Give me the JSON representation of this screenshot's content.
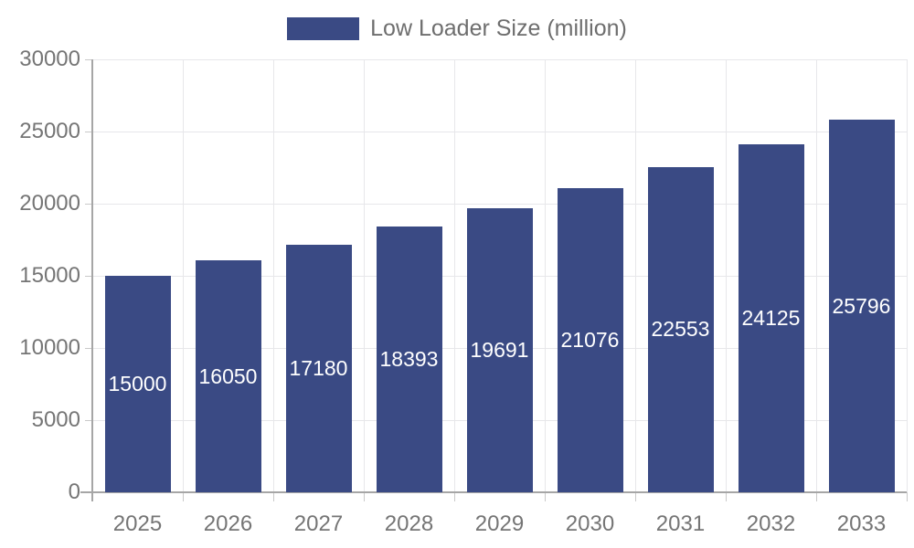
{
  "chart_data": {
    "type": "bar",
    "title": "",
    "legend_position": "top-center",
    "categories": [
      "2025",
      "2026",
      "2027",
      "2028",
      "2029",
      "2030",
      "2031",
      "2032",
      "2033"
    ],
    "series": [
      {
        "name": "Low Loader Size (million)",
        "values": [
          15000,
          16050,
          17180,
          18393,
          19691,
          21076,
          22553,
          24125,
          25796
        ]
      }
    ],
    "xlabel": "",
    "ylabel": "",
    "ylim": [
      0,
      30000
    ],
    "ytick_interval": 5000,
    "ytick_labels": [
      "0",
      "5000",
      "10000",
      "15000",
      "20000",
      "25000",
      "30000"
    ],
    "grid": true,
    "bar_color": "#3A4A84",
    "data_labels": {
      "visible": true,
      "color": "#FFFFFF",
      "position": "inside-center"
    }
  },
  "colors": {
    "bar": "#3A4A84",
    "grid": "#E7E7EA",
    "axis": "#A6A6A6",
    "tick": "#C9C9C9",
    "tick_label": "#757575",
    "legend_text": "#6E6E6E",
    "data_label": "#FFFFFF",
    "background": "#FFFFFF"
  }
}
